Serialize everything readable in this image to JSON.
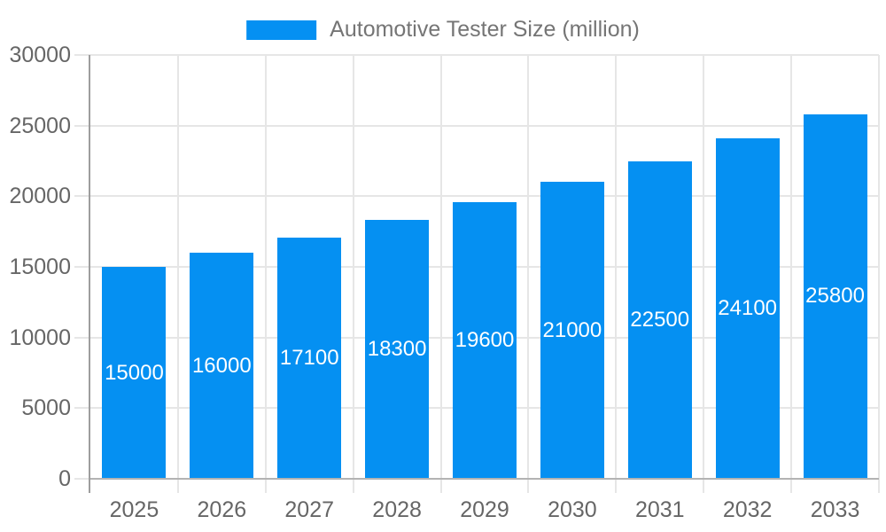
{
  "legend": {
    "label": "Automotive Tester Size (million)"
  },
  "chart_data": {
    "type": "bar",
    "title": "Automotive Tester Size (million)",
    "categories": [
      "2025",
      "2026",
      "2027",
      "2028",
      "2029",
      "2030",
      "2031",
      "2032",
      "2033"
    ],
    "values": [
      15000,
      16000,
      17100,
      18300,
      19600,
      21000,
      22500,
      24100,
      25800
    ],
    "series_name": "Automotive Tester Size (million)",
    "xlabel": "",
    "ylabel": "",
    "ylim": [
      0,
      30000
    ],
    "ytick_interval": 5000,
    "ytick_labels": [
      "0",
      "5000",
      "10000",
      "15000",
      "20000",
      "25000",
      "30000"
    ],
    "grid": true,
    "legend_position": "top-center",
    "bar_labels_inside": true,
    "colors": {
      "bar": "#0590f2",
      "bar_label": "#ffffff",
      "axis_text": "#666666",
      "legend_text": "#757575",
      "gridline": "#e6e6e6",
      "baseline": "#b3b3b3",
      "axis_line": "#9e9e9e",
      "background": "#ffffff"
    }
  }
}
